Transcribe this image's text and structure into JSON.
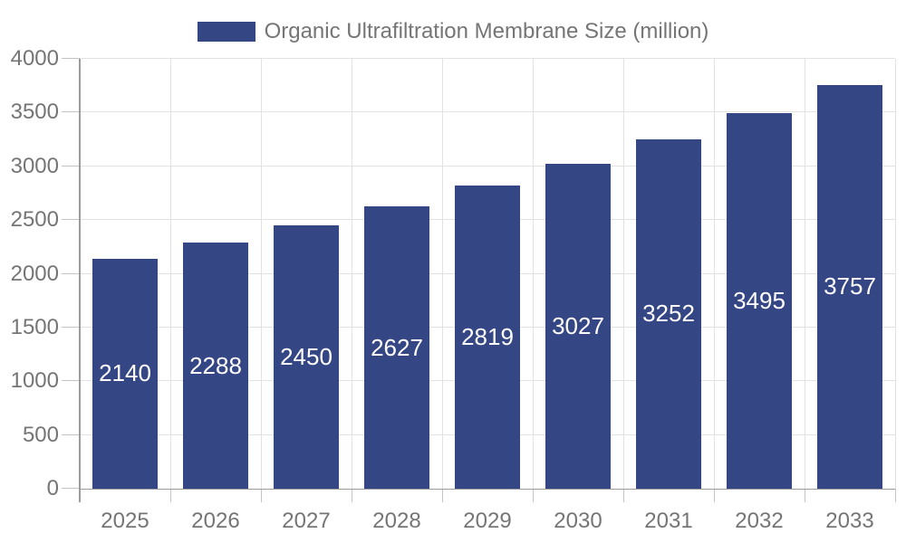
{
  "legend": {
    "label": "Organic Ultrafiltration Membrane Size (million)"
  },
  "colors": {
    "background": "#ffffff",
    "bar": "#354685",
    "bar_label": "#ffffff",
    "grid_line": "#e2e2e2",
    "axis_line": "#9b9b9b",
    "tick_mark": "#c4c4c4",
    "tick_label": "#757575",
    "legend_text": "#757575"
  },
  "chart_data": {
    "type": "bar",
    "title": "Organic Ultrafiltration Membrane Size (million)",
    "categories": [
      "2025",
      "2026",
      "2027",
      "2028",
      "2029",
      "2030",
      "2031",
      "2032",
      "2033"
    ],
    "values": [
      2140,
      2288,
      2450,
      2627,
      2819,
      3027,
      3252,
      3495,
      3757
    ],
    "xlabel": "",
    "ylabel": "",
    "ylim": [
      0,
      4000
    ],
    "yticks": [
      0,
      500,
      1000,
      1500,
      2000,
      2500,
      3000,
      3500,
      4000
    ],
    "grid": true,
    "legend_position": "top-center",
    "value_labels": "inside-center"
  }
}
